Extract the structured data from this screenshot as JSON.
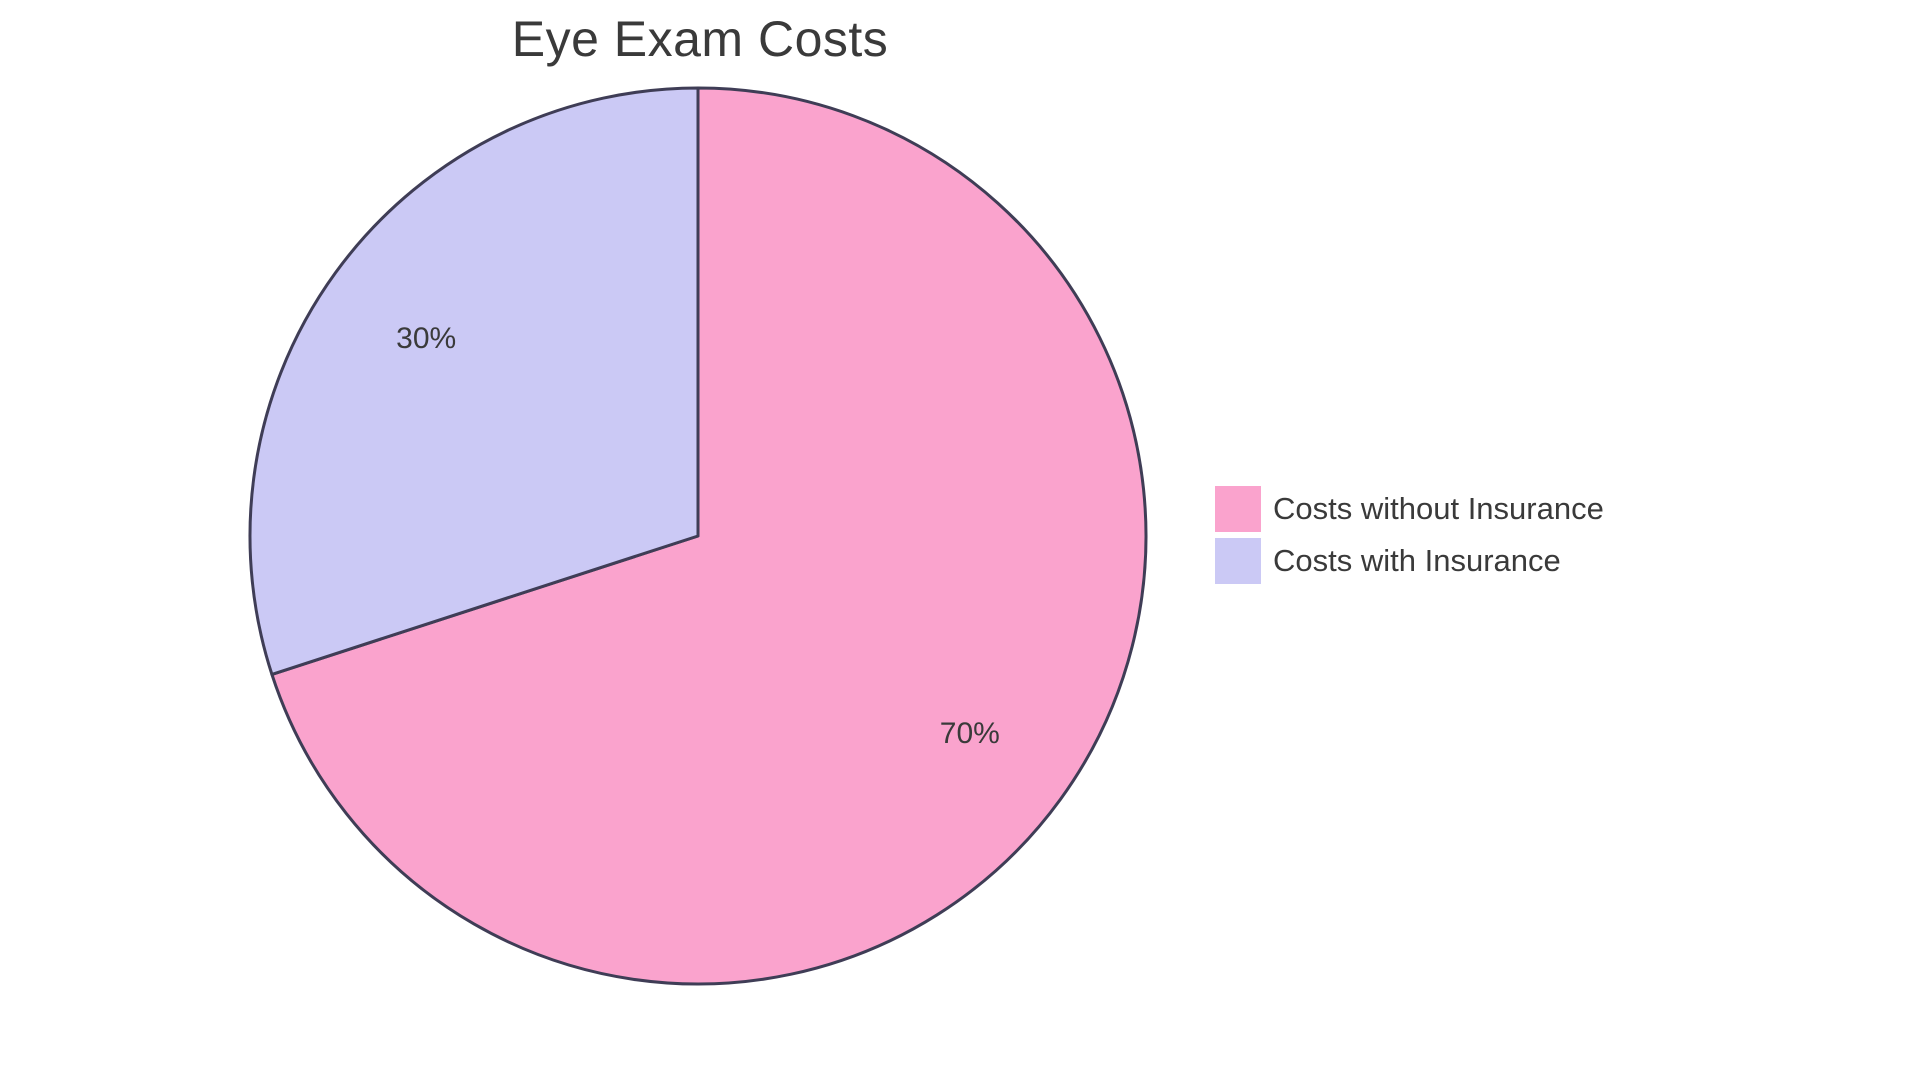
{
  "title": "Eye Exam Costs",
  "chart_data": {
    "type": "pie",
    "title": "Eye Exam Costs",
    "labels": [
      "Costs without Insurance",
      "Costs with Insurance"
    ],
    "values": [
      70,
      30
    ],
    "percent_labels": [
      "70%",
      "30%"
    ],
    "colors": [
      "#FAA3CD",
      "#CBC9F5"
    ],
    "stroke_color": "#3F3D56",
    "text_color": "#3A3A3A",
    "start_angle_deg": 0,
    "direction": "clockwise",
    "legend_position": "right"
  },
  "legend": {
    "items": [
      {
        "label": "Costs without Insurance",
        "color": "#FAA3CD"
      },
      {
        "label": "Costs with Insurance",
        "color": "#CBC9F5"
      }
    ]
  }
}
